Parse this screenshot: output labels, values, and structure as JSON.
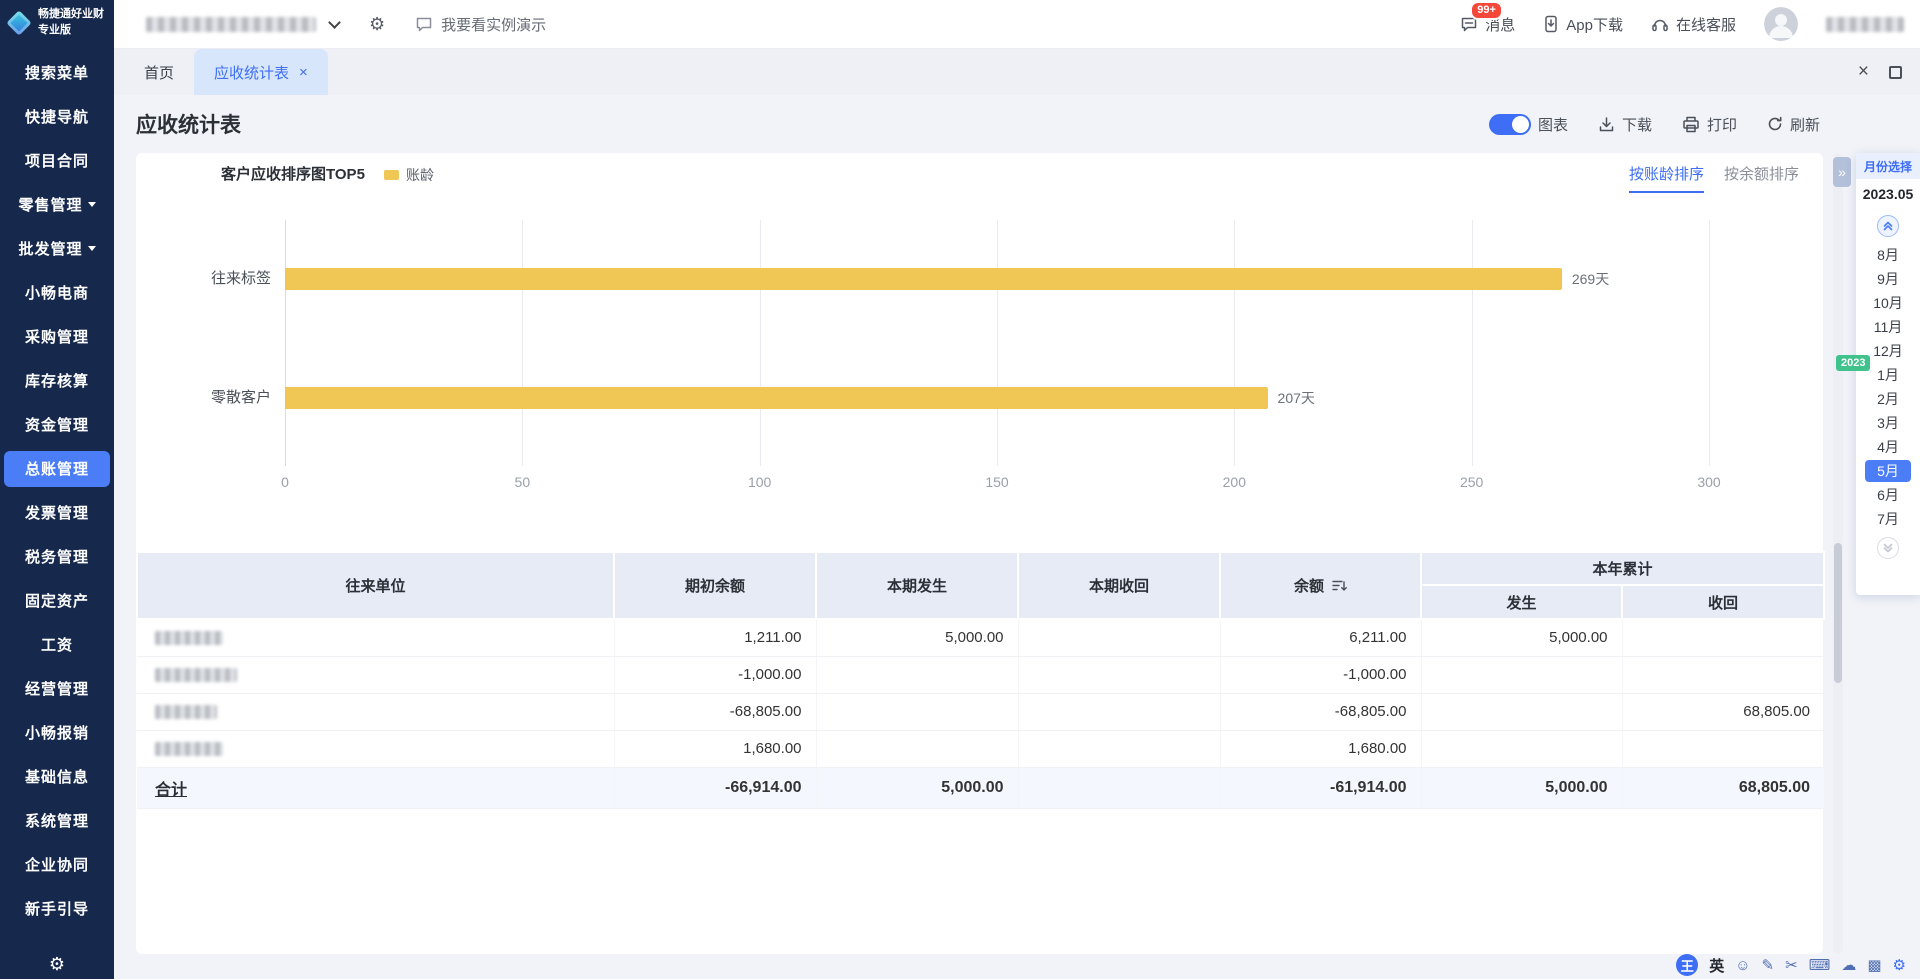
{
  "brand": {
    "name": "畅捷通好业财",
    "edition": "专业版"
  },
  "topbar": {
    "demo_label": "我要看实例演示",
    "messages_label": "消息",
    "messages_badge": "99+",
    "app_download_label": "App下载",
    "support_label": "在线客服"
  },
  "tabs": [
    {
      "label": "首页",
      "active": false
    },
    {
      "label": "应收统计表",
      "active": true,
      "closable": true
    }
  ],
  "sidebar": {
    "items": [
      "搜索菜单",
      "快捷导航",
      "项目合同",
      "零售管理",
      "批发管理",
      "小畅电商",
      "采购管理",
      "库存核算",
      "资金管理",
      "总账管理",
      "发票管理",
      "税务管理",
      "固定资产",
      "工资",
      "经营管理",
      "小畅报销",
      "基础信息",
      "系统管理",
      "企业协同",
      "新手引导"
    ],
    "active_item": "总账管理",
    "expandable_items": [
      "零售管理",
      "批发管理"
    ]
  },
  "page": {
    "title": "应收统计表",
    "chart_toggle_label": "图表",
    "chart_toggle_on": true,
    "download_label": "下载",
    "print_label": "打印",
    "refresh_label": "刷新"
  },
  "chart_data": {
    "type": "bar",
    "orientation": "horizontal",
    "title": "客户应收排序图TOP5",
    "legend": [
      "账龄"
    ],
    "categories": [
      "往来标签",
      "零散客户"
    ],
    "values": [
      269,
      207
    ],
    "value_labels": [
      "269天",
      "207天"
    ],
    "x_ticks": [
      "0",
      "50",
      "100",
      "150",
      "200",
      "250",
      "300"
    ],
    "xlim": [
      0,
      300
    ],
    "bar_color": "#f0c654",
    "grid": true,
    "sort_tabs": [
      {
        "label": "按账龄排序",
        "active": true
      },
      {
        "label": "按余额排序",
        "active": false
      }
    ]
  },
  "month_panel": {
    "title": "月份选择",
    "current": "2023.05",
    "year_badge": "2023",
    "months": [
      "8月",
      "9月",
      "10月",
      "11月",
      "12月",
      "1月",
      "2月",
      "3月",
      "4月",
      "5月",
      "6月",
      "7月"
    ],
    "active_month": "5月"
  },
  "table": {
    "col_headers": [
      "往来单位",
      "期初余额",
      "本期发生",
      "本期收回",
      "余额"
    ],
    "group_header": "本年累计",
    "sub_headers": [
      "发生",
      "收回"
    ],
    "rows": [
      [
        "1,211.00",
        "5,000.00",
        "",
        "6,211.00",
        "5,000.00",
        ""
      ],
      [
        "-1,000.00",
        "",
        "",
        "-1,000.00",
        "",
        ""
      ],
      [
        "-68,805.00",
        "",
        "",
        "-68,805.00",
        "",
        "68,805.00"
      ],
      [
        "1,680.00",
        "",
        "",
        "1,680.00",
        "",
        ""
      ]
    ],
    "total_label": "合计",
    "total": [
      "-66,914.00",
      "5,000.00",
      "",
      "-61,914.00",
      "5,000.00",
      "68,805.00"
    ]
  },
  "ime": {
    "logo": "王",
    "lang": "英",
    "icons": [
      "smiley-icon",
      "pen-icon",
      "scissors-icon",
      "keyboard-icon",
      "cloud-icon",
      "toolbox-icon",
      "gear-icon"
    ]
  },
  "colors": {
    "accent": "#3d6ef5",
    "sidebar_bg": "#16294d",
    "bar": "#f0c654",
    "badge_red": "#f5483b",
    "badge_green": "#3fc28c",
    "tab_active_bg": "#d8e6fc",
    "table_header_bg": "#e7ebf6"
  }
}
